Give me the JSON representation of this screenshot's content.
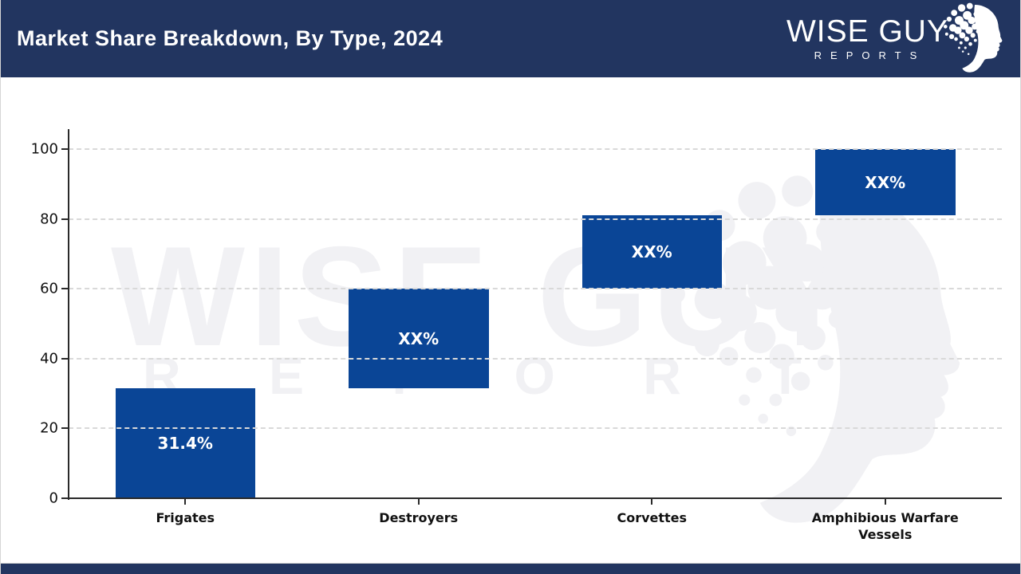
{
  "header": {
    "title": "Market Share Breakdown, By Type, 2024",
    "logo": {
      "primary": "WISE GUY",
      "secondary": "REPORTS"
    }
  },
  "watermark": {
    "primary": "WISE GUY",
    "secondary": "R E P O R T S"
  },
  "colors": {
    "header_bg": "#223560",
    "footer_bg": "#223560",
    "bar_fill": "#0a4596",
    "bar_label_text": "#ffffff",
    "gridline": "#d9d9d9",
    "axis": "#2a2a2a",
    "tick_label_text": "#111111",
    "watermark": "#f1f1f4"
  },
  "chart_data": {
    "type": "bar",
    "variant": "waterfall",
    "title": "Market Share Breakdown, By Type, 2024",
    "categories": [
      "Frigates",
      "Destroyers",
      "Corvettes",
      "Amphibious Warfare Vessels"
    ],
    "bars": [
      {
        "category": "Frigates",
        "start": 0,
        "end": 31.4,
        "label": "31.4%"
      },
      {
        "category": "Destroyers",
        "start": 31.4,
        "end": 60,
        "label": "XX%"
      },
      {
        "category": "Corvettes",
        "start": 60,
        "end": 81,
        "label": "XX%"
      },
      {
        "category": "Amphibious Warfare Vessels",
        "start": 81,
        "end": 100,
        "label": "XX%"
      }
    ],
    "yticks": [
      0,
      20,
      40,
      60,
      80,
      100
    ],
    "ylim": [
      0,
      105
    ],
    "xlabel": "",
    "ylabel": "",
    "grid": "horizontal-dashed",
    "legend": false
  }
}
